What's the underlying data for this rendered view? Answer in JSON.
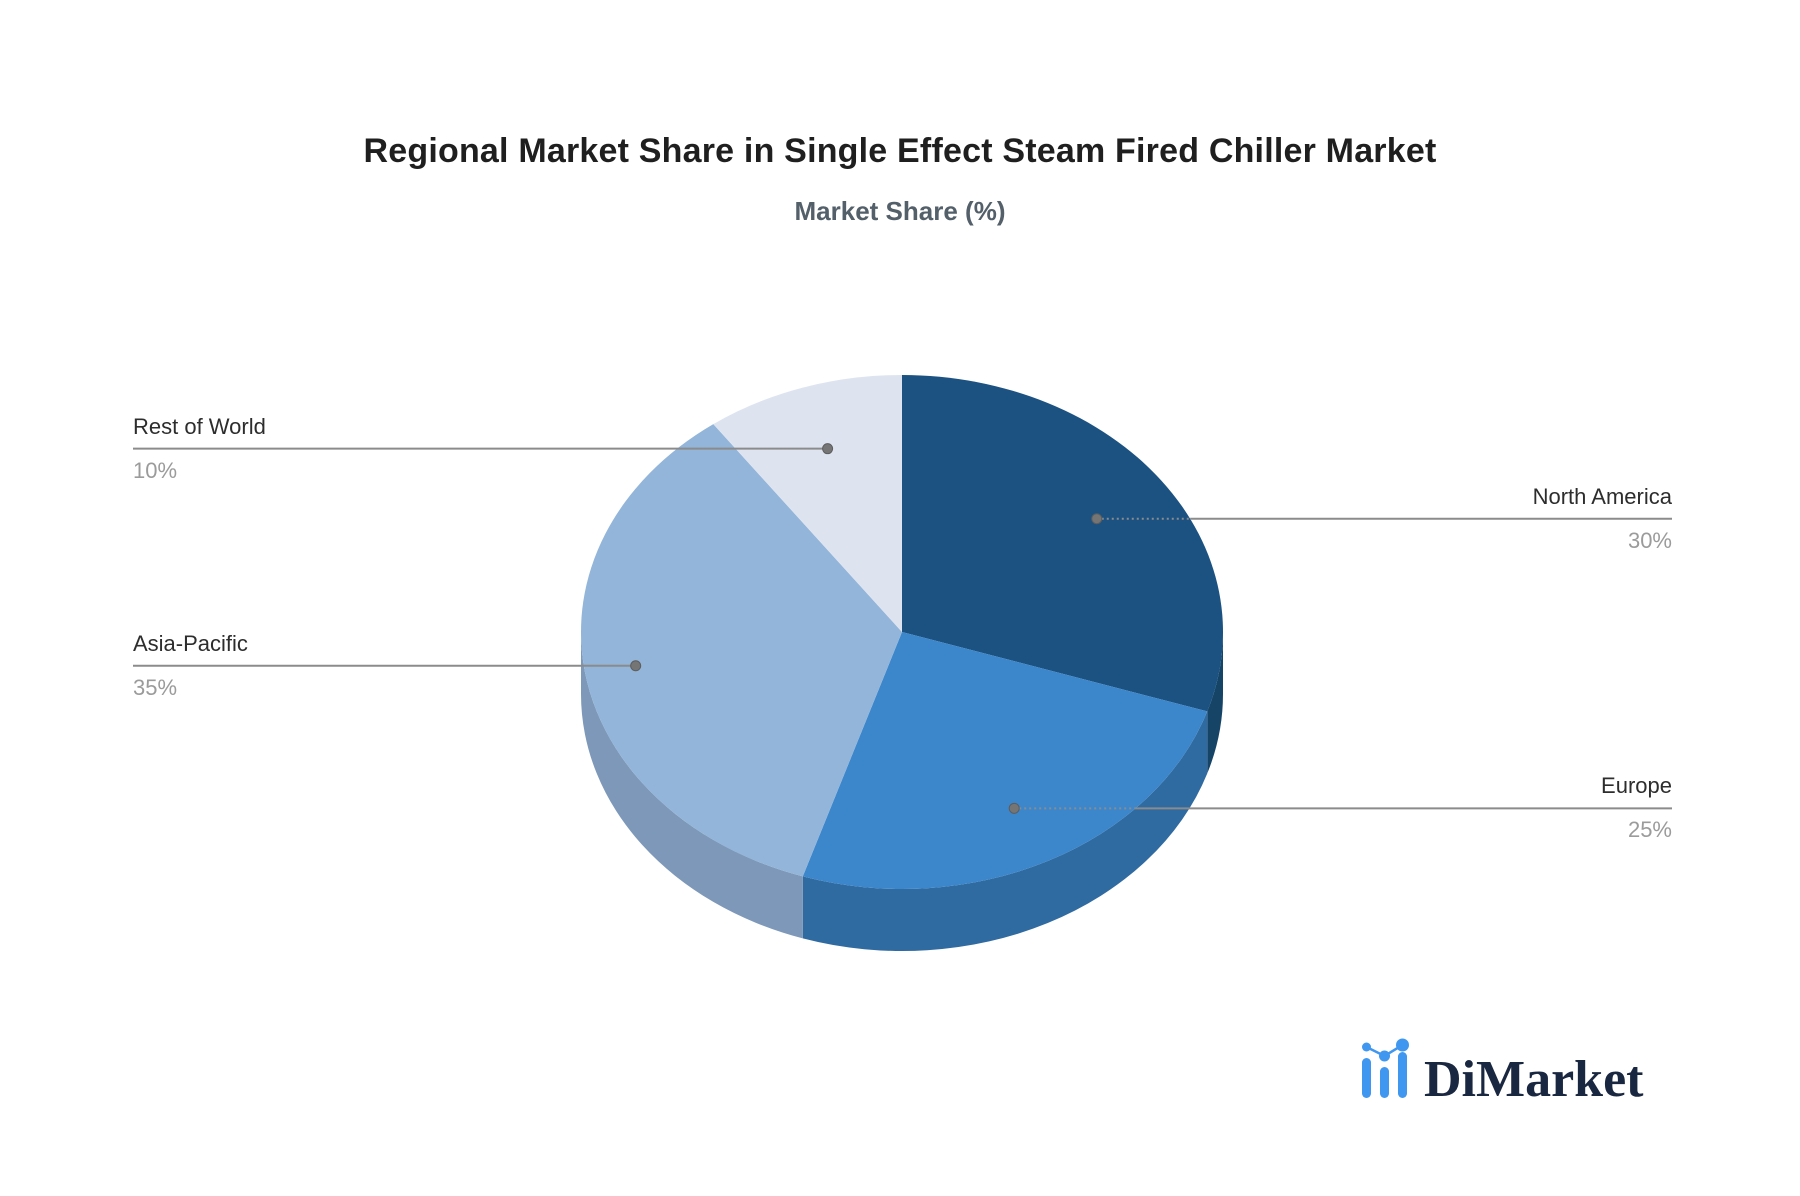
{
  "title": "Regional Market Share in Single Effect Steam Fired Chiller Market",
  "subtitle": "Market Share (%)",
  "brand": {
    "name": "DiMarket",
    "icon": "bar-line-chart-icon",
    "icon_color": "#3f97f0",
    "text_color": "#1a2740"
  },
  "chart_data": {
    "type": "pie",
    "title": "Regional Market Share in Single Effect Steam Fired Chiller Market",
    "subtitle": "Market Share (%)",
    "unit": "%",
    "effect": "3d",
    "start_angle_deg": 0,
    "direction": "clockwise",
    "legend_position": "none",
    "connector_color": "#8b8b8b",
    "connector_dot_color": "#757575",
    "label_text_color": "#2d2d2d",
    "value_text_color": "#9b9b9b",
    "slices": [
      {
        "label": "North America",
        "value": 30,
        "value_label": "30%",
        "color": "#1b5281",
        "side_color": "#164467",
        "callout_side": "right",
        "connector_dashed_over_pie": true
      },
      {
        "label": "Europe",
        "value": 25,
        "value_label": "25%",
        "color": "#3c87cb",
        "side_color": "#2f6aa0",
        "callout_side": "right",
        "connector_dashed_over_pie": true
      },
      {
        "label": "Asia-Pacific",
        "value": 35,
        "value_label": "35%",
        "color": "#92b5d9",
        "side_color": "#7d98b8",
        "callout_side": "left",
        "connector_dashed_over_pie": false
      },
      {
        "label": "Rest of World",
        "value": 10,
        "value_label": "10%",
        "color": "#dde4f0",
        "side_color": "#b9c4d6",
        "callout_side": "left",
        "connector_dashed_over_pie": false
      }
    ]
  }
}
